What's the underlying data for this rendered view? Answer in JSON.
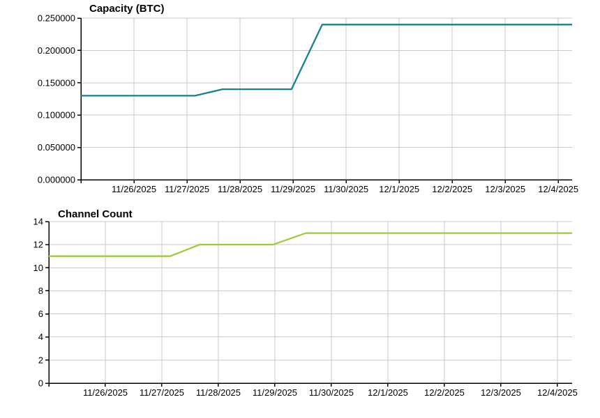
{
  "page": {
    "background": "#ffffff"
  },
  "styles": {
    "grid_color": "#c9c9c9",
    "axis_color": "#000000",
    "text_color": "#000000",
    "capacity_line_color": "#14828c",
    "channel_line_color": "#9dcc3a"
  },
  "chart_data": [
    {
      "type": "line",
      "title": "Capacity (BTC)",
      "xlabel": "",
      "ylabel": "",
      "x_unit": "days since 11/25/2025",
      "xlim": [
        0,
        9.26
      ],
      "ylim": [
        0,
        0.25
      ],
      "grid": true,
      "legend": "none",
      "x_ticks": [
        {
          "v": 0,
          "label": ""
        },
        {
          "v": 1,
          "label": "11/26/2025"
        },
        {
          "v": 2,
          "label": "11/27/2025"
        },
        {
          "v": 3,
          "label": "11/28/2025"
        },
        {
          "v": 4,
          "label": "11/29/2025"
        },
        {
          "v": 5,
          "label": "11/30/2025"
        },
        {
          "v": 6,
          "label": "12/1/2025"
        },
        {
          "v": 7,
          "label": "12/2/2025"
        },
        {
          "v": 8,
          "label": "12/3/2025"
        },
        {
          "v": 9,
          "label": "12/4/2025"
        }
      ],
      "y_ticks": [
        {
          "v": 0.0,
          "label": "0.000000"
        },
        {
          "v": 0.05,
          "label": "0.050000"
        },
        {
          "v": 0.1,
          "label": "0.100000"
        },
        {
          "v": 0.15,
          "label": "0.150000"
        },
        {
          "v": 0.2,
          "label": "0.200000"
        },
        {
          "v": 0.25,
          "label": "0.250000"
        }
      ],
      "series": [
        {
          "name": "Capacity (BTC)",
          "color": "#14828c",
          "points": [
            [
              0,
              0.13
            ],
            [
              2.15,
              0.13
            ],
            [
              2.67,
              0.14
            ],
            [
              3.97,
              0.14
            ],
            [
              4.55,
              0.24
            ],
            [
              9.26,
              0.24
            ]
          ]
        }
      ]
    },
    {
      "type": "line",
      "title": "Channel Count",
      "xlabel": "",
      "ylabel": "",
      "x_unit": "days since 11/25/2025",
      "xlim": [
        0,
        9.26
      ],
      "ylim": [
        0,
        14
      ],
      "grid": true,
      "legend": "none",
      "x_ticks": [
        {
          "v": 0,
          "label": ""
        },
        {
          "v": 1,
          "label": "11/26/2025"
        },
        {
          "v": 2,
          "label": "11/27/2025"
        },
        {
          "v": 3,
          "label": "11/28/2025"
        },
        {
          "v": 4,
          "label": "11/29/2025"
        },
        {
          "v": 5,
          "label": "11/30/2025"
        },
        {
          "v": 6,
          "label": "12/1/2025"
        },
        {
          "v": 7,
          "label": "12/2/2025"
        },
        {
          "v": 8,
          "label": "12/3/2025"
        },
        {
          "v": 9,
          "label": "12/4/2025"
        }
      ],
      "y_ticks": [
        {
          "v": 0,
          "label": "0"
        },
        {
          "v": 2,
          "label": "2"
        },
        {
          "v": 4,
          "label": "4"
        },
        {
          "v": 6,
          "label": "6"
        },
        {
          "v": 8,
          "label": "8"
        },
        {
          "v": 10,
          "label": "10"
        },
        {
          "v": 12,
          "label": "12"
        },
        {
          "v": 14,
          "label": "14"
        }
      ],
      "series": [
        {
          "name": "Channel Count",
          "color": "#9dcc3a",
          "points": [
            [
              0,
              11
            ],
            [
              2.15,
              11
            ],
            [
              2.67,
              12
            ],
            [
              3.97,
              12
            ],
            [
              4.55,
              13
            ],
            [
              9.26,
              13
            ]
          ]
        }
      ]
    }
  ]
}
